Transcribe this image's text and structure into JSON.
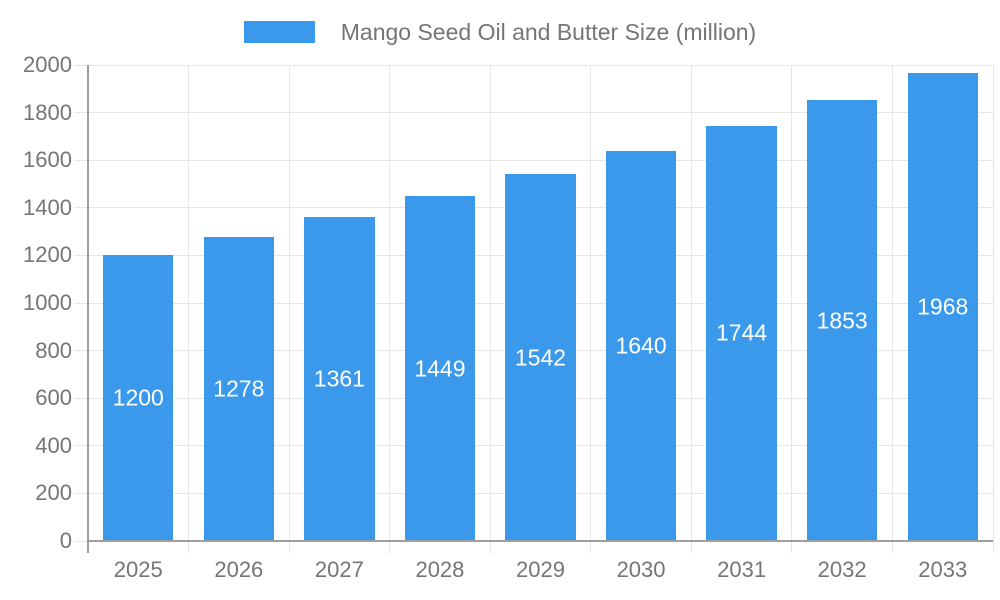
{
  "chart_data": {
    "type": "bar",
    "title": "Mango Seed Oil and Butter Size (million)",
    "categories": [
      "2025",
      "2026",
      "2027",
      "2028",
      "2029",
      "2030",
      "2031",
      "2032",
      "2033"
    ],
    "values": [
      1200,
      1278,
      1361,
      1449,
      1542,
      1640,
      1744,
      1853,
      1968
    ],
    "xlabel": "",
    "ylabel": "",
    "ylim": [
      0,
      2000
    ],
    "y_ticks": [
      0,
      200,
      400,
      600,
      800,
      1000,
      1200,
      1400,
      1600,
      1800,
      2000
    ],
    "grid": true,
    "legend_position": "top-center",
    "bar_color": "#3b99ec",
    "bar_label_color": "#ffffff",
    "axis_text_color": "#757575",
    "grid_color": "#e6e6e6",
    "axis_line_color": "#9e9e9e"
  }
}
